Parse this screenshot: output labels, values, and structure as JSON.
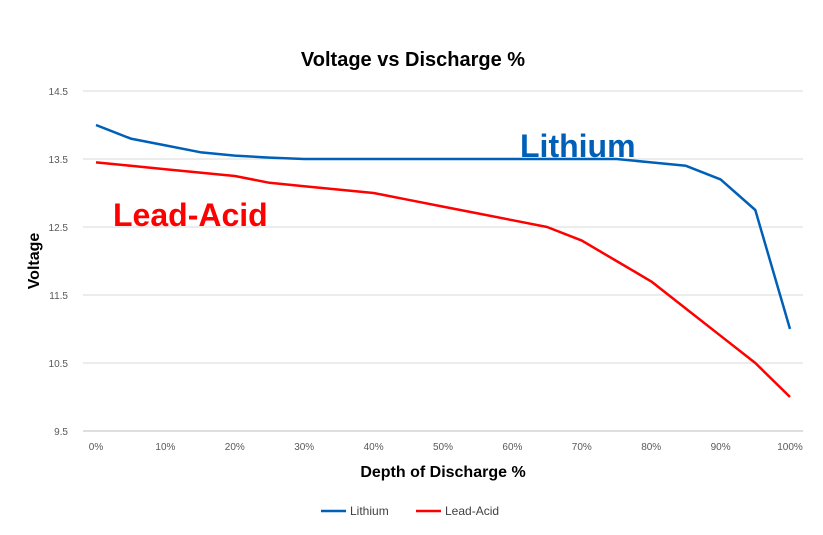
{
  "chart_data": {
    "type": "line",
    "title": "Voltage vs Discharge %",
    "xlabel": "Depth of Discharge %",
    "ylabel": "Voltage",
    "categories": [
      "0%",
      "5%",
      "10%",
      "15%",
      "20%",
      "25%",
      "30%",
      "35%",
      "40%",
      "45%",
      "50%",
      "55%",
      "60%",
      "65%",
      "70%",
      "75%",
      "80%",
      "85%",
      "90%",
      "95%",
      "100%"
    ],
    "x_tick_labels": [
      "0%",
      "10%",
      "20%",
      "30%",
      "40%",
      "50%",
      "60%",
      "70%",
      "80%",
      "90%",
      "100%"
    ],
    "y_ticks": [
      "9.5",
      "10.5",
      "11.5",
      "12.5",
      "13.5",
      "14.5"
    ],
    "ylim": [
      9.5,
      14.5
    ],
    "grid": true,
    "legend": "bottom",
    "series": [
      {
        "name": "Lithium",
        "color": "#0060B8",
        "values": [
          14.0,
          13.8,
          13.7,
          13.6,
          13.55,
          13.52,
          13.5,
          13.5,
          13.5,
          13.5,
          13.5,
          13.5,
          13.5,
          13.5,
          13.5,
          13.5,
          13.45,
          13.4,
          13.2,
          12.75,
          11.0
        ]
      },
      {
        "name": "Lead-Acid",
        "color": "#FF0000",
        "values": [
          13.45,
          13.4,
          13.35,
          13.3,
          13.25,
          13.15,
          13.1,
          13.05,
          13.0,
          12.9,
          12.8,
          12.7,
          12.6,
          12.5,
          12.3,
          12.0,
          11.7,
          11.3,
          10.9,
          10.5,
          10.0
        ]
      }
    ],
    "annotations": [
      "Lithium",
      "Lead-Acid"
    ]
  }
}
